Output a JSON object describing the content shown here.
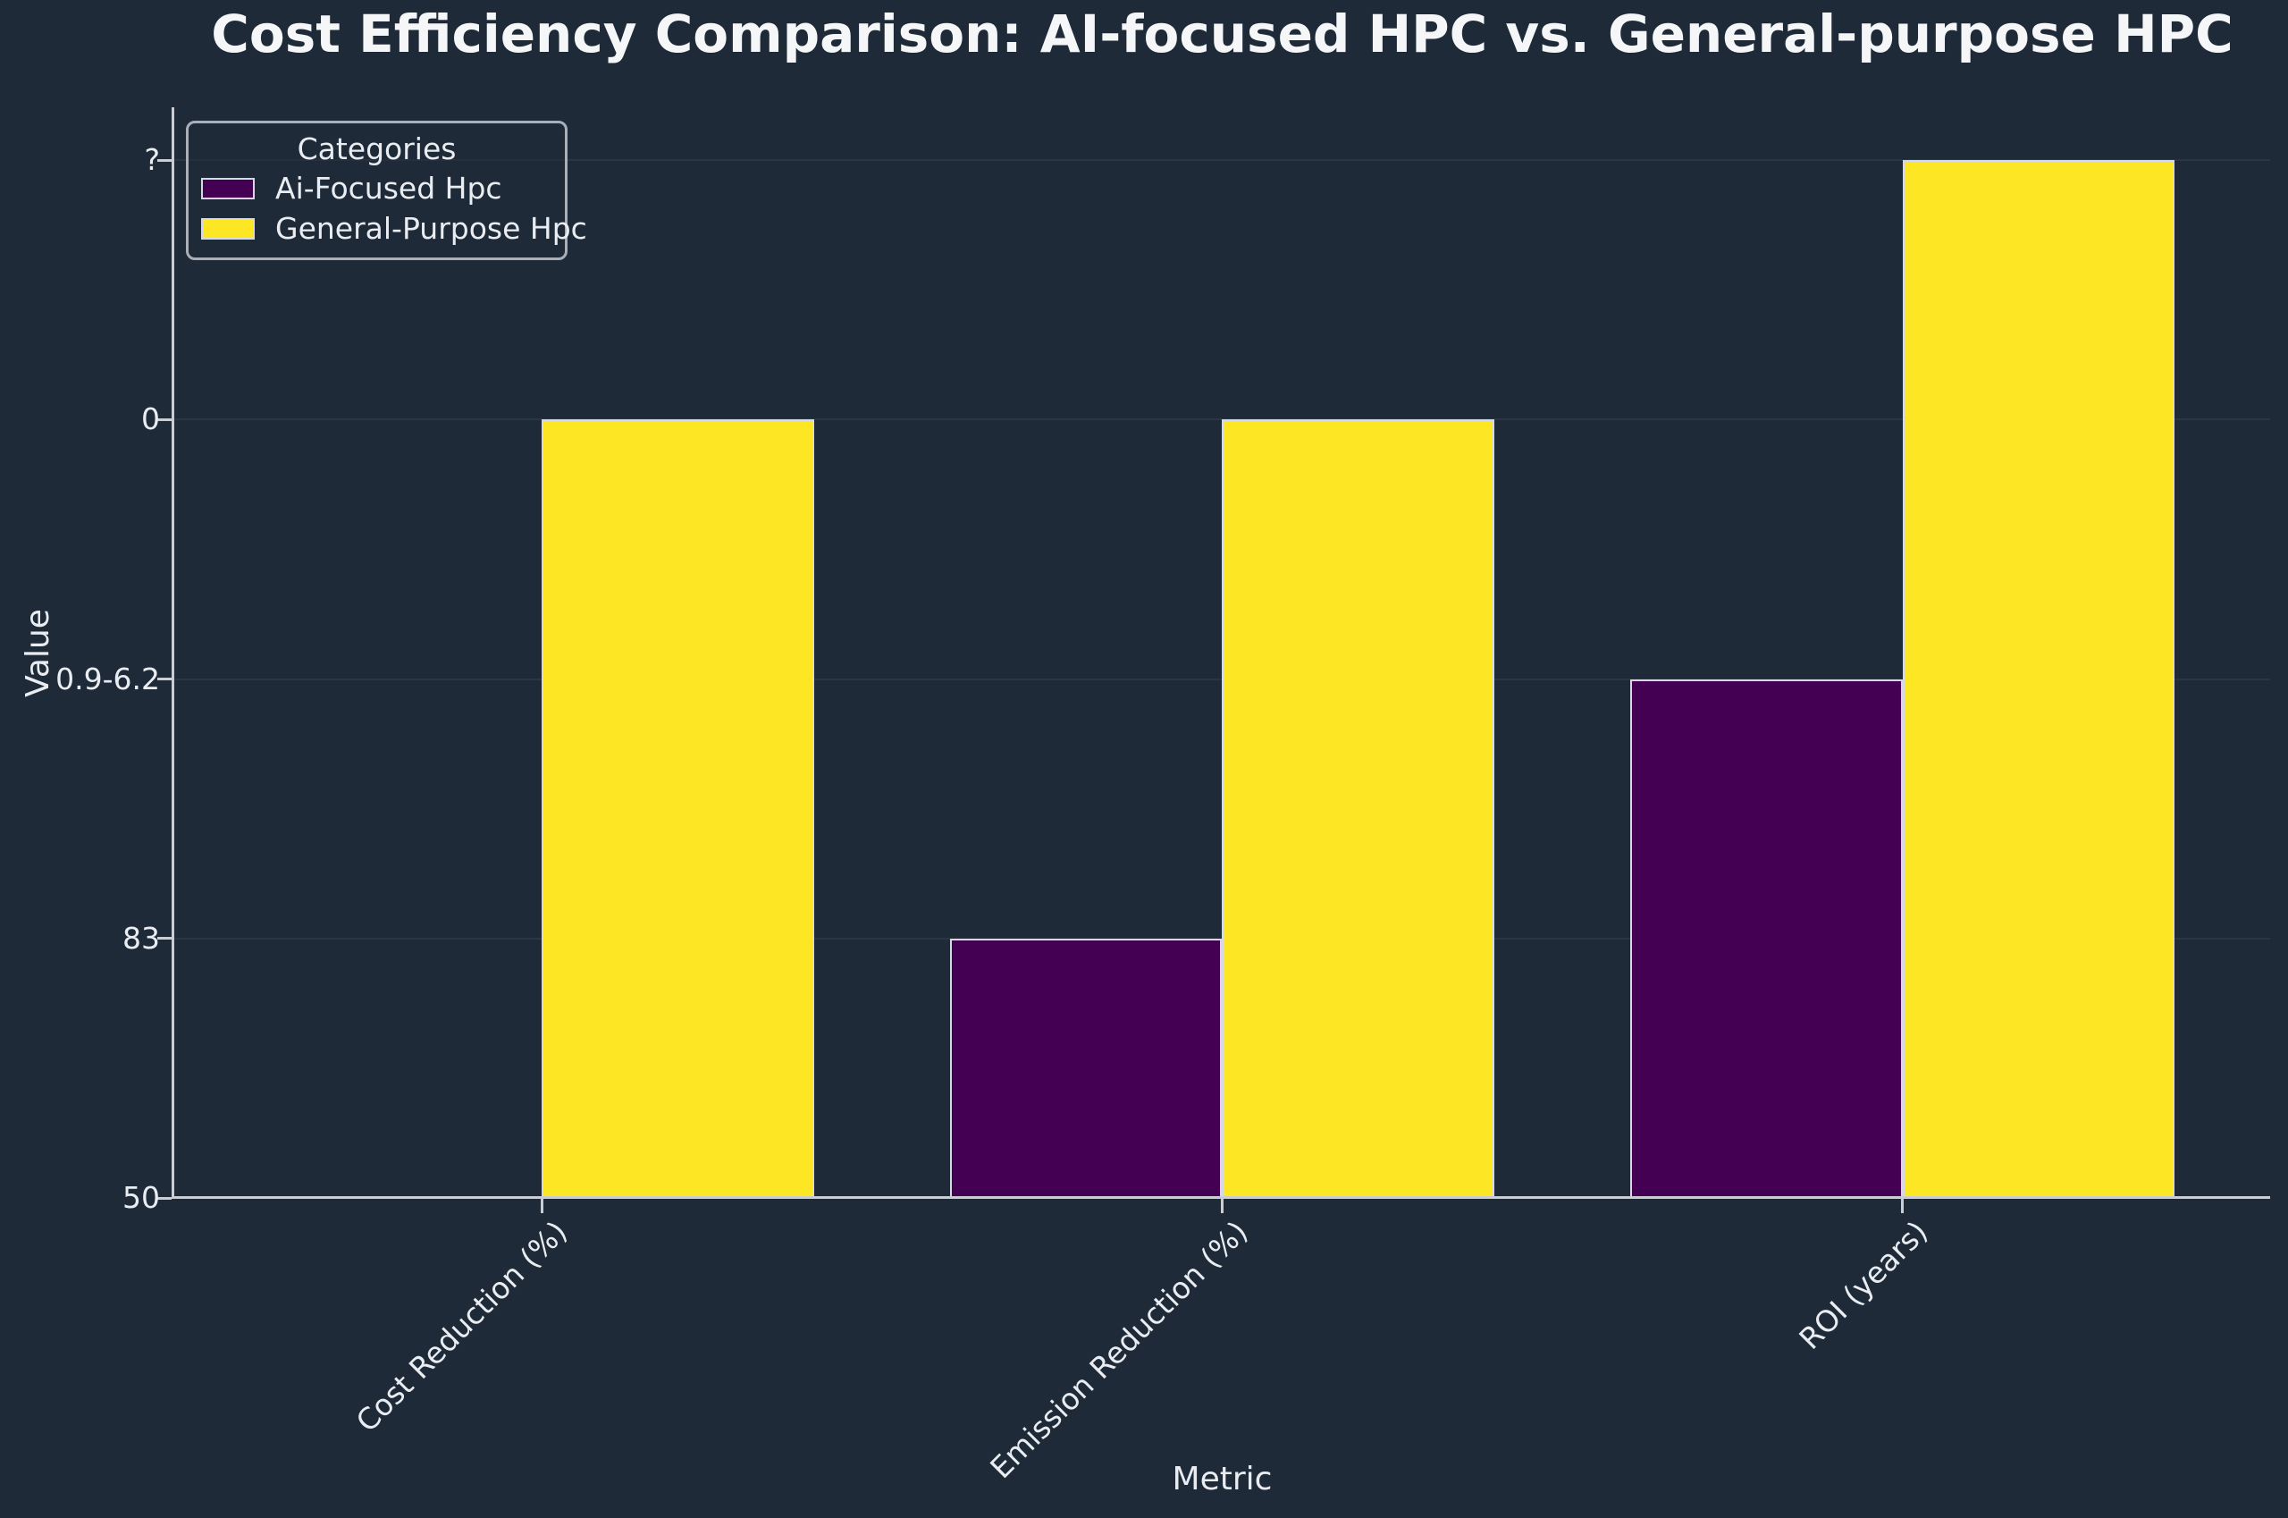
{
  "chart_data": {
    "type": "bar",
    "title": "Cost Efficiency Comparison: AI-focused HPC vs. General-purpose HPC",
    "xlabel": "Metric",
    "ylabel": "Value",
    "categories": [
      "Cost Reduction (%)",
      "Emission Reduction (%)",
      "ROI (years)"
    ],
    "series": [
      {
        "name": "Ai-Focused Hpc",
        "color": "#440154",
        "values": [
          "50",
          "83",
          "0.9-6.2"
        ]
      },
      {
        "name": "General-Purpose Hpc",
        "color": "#fde725",
        "values": [
          "0",
          "0",
          "?"
        ]
      }
    ],
    "y_axis": {
      "tick_labels_bottom_to_top": [
        "50",
        "83",
        "0.9-6.2",
        "0",
        "?"
      ]
    },
    "legend": {
      "title": "Categories",
      "position": "upper-left"
    },
    "grid": "faint horizontal gridlines at each y tick",
    "axis_note": "y-axis is categorical; bar height equals position of its value label on the axis"
  },
  "colors": {
    "background": "#1e2a38",
    "text": "#e9edf2",
    "axis": "#c9ced6",
    "bar_edge": "#d6d9e4",
    "ai_focused_hpc": "#440154",
    "general_purpose_hpc": "#fde725"
  }
}
